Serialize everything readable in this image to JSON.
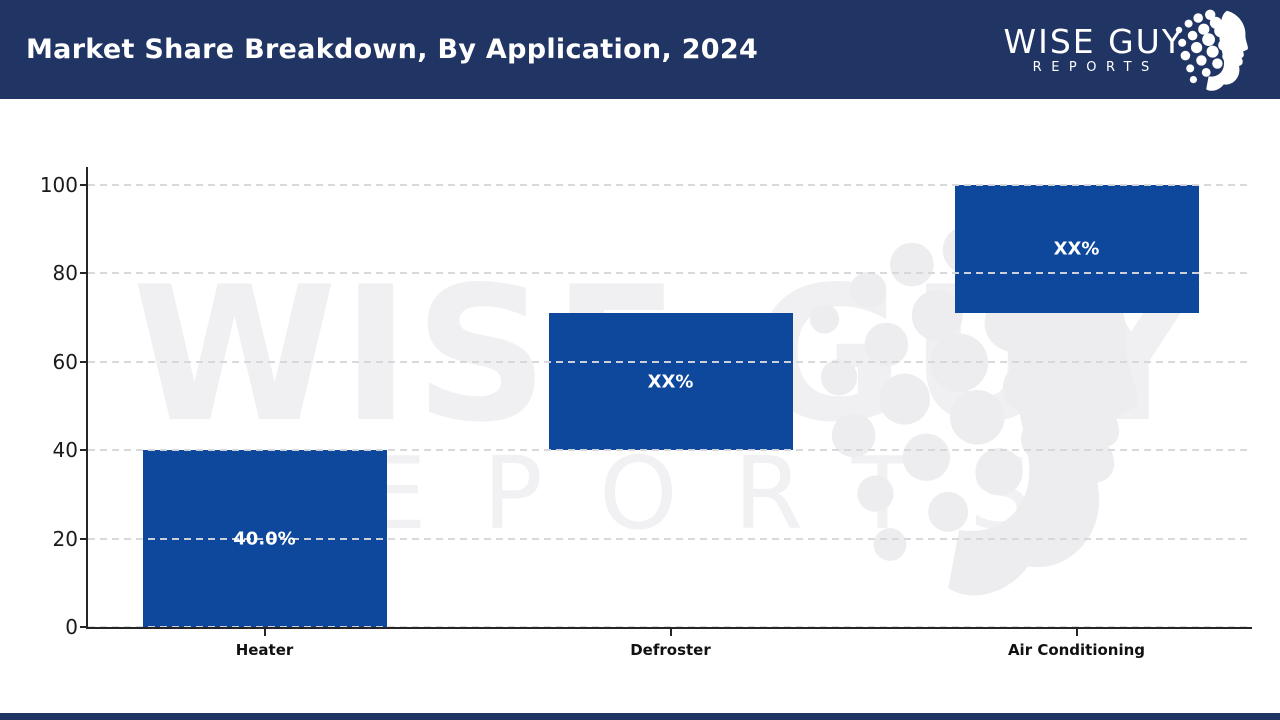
{
  "header": {
    "title": "Market Share Breakdown, By Application, 2024",
    "bg_color": "#213564",
    "logo": {
      "line1": "WISE GUY",
      "line2": "REPORTS"
    }
  },
  "watermark": {
    "line1": "WISE GUY",
    "line2": "REPORTS"
  },
  "footer": {
    "bar_color": "#213564"
  },
  "chart_data": {
    "type": "bar",
    "variant": "floating-segment-waterfall",
    "title": "Market Share Breakdown, By Application, 2024",
    "xlabel": "",
    "ylabel": "",
    "categories": [
      "Heater",
      "Defroster",
      "Air Conditioning"
    ],
    "series": [
      {
        "name": "Market Share (%)",
        "segments": [
          {
            "category": "Heater",
            "start": 0,
            "end": 40,
            "label": "40.0%"
          },
          {
            "category": "Defroster",
            "start": 40,
            "end": 71,
            "label": "XX%"
          },
          {
            "category": "Air Conditioning",
            "start": 71,
            "end": 100,
            "label": "XX%"
          }
        ]
      }
    ],
    "yticks": [
      0,
      20,
      40,
      60,
      80,
      100
    ],
    "ylim": [
      0,
      104
    ],
    "grid": "horizontal-dashed",
    "grid_color": "#d9d9da",
    "bar_color": "#0d489c",
    "bar_label_color": "#ffffff",
    "axis_color": "#262626",
    "legend": "none"
  }
}
